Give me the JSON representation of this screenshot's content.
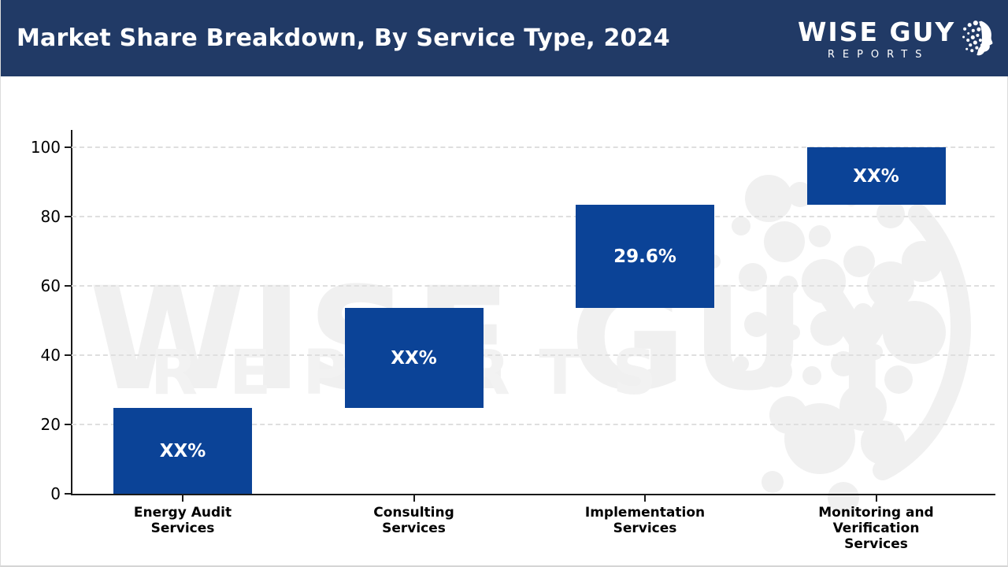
{
  "header": {
    "title": "Market Share Breakdown, By Service Type, 2024",
    "logo": {
      "brand": "WISE GUY",
      "sub": "REPORTS"
    }
  },
  "watermark": {
    "brand": "WISE GUY",
    "sub": "REPORTS"
  },
  "chart_data": {
    "type": "bar",
    "variant": "waterfall-floating-bars",
    "title": "Market Share Breakdown, By Service Type, 2024",
    "xlabel": "",
    "ylabel": "",
    "ylim": [
      0,
      105
    ],
    "yticks": [
      0,
      20,
      40,
      60,
      80,
      100
    ],
    "grid": "horizontal-dashed",
    "legend": "none",
    "bar_color": "#0b4397",
    "bar_label_color": "#ffffff",
    "categories": [
      "Energy Audit Services",
      "Consulting Services",
      "Implementation Services",
      "Monitoring and Verification Services"
    ],
    "category_lines": [
      [
        "Energy Audit",
        "Services"
      ],
      [
        "Consulting",
        "Services"
      ],
      [
        "Implementation",
        "Services"
      ],
      [
        "Monitoring and",
        "Verification",
        "Services"
      ]
    ],
    "segments": [
      {
        "start": 0,
        "end": 24.7,
        "value_label": "XX%"
      },
      {
        "start": 24.7,
        "end": 53.7,
        "value_label": "XX%"
      },
      {
        "start": 53.7,
        "end": 83.3,
        "value_label": "29.6%"
      },
      {
        "start": 83.3,
        "end": 100,
        "value_label": "XX%"
      }
    ]
  },
  "colors": {
    "header_bg": "#213a66",
    "bar": "#0b4397",
    "grid": "#dfdfdf",
    "axis": "#1a1a1a",
    "watermark": "#f0f0f0"
  }
}
